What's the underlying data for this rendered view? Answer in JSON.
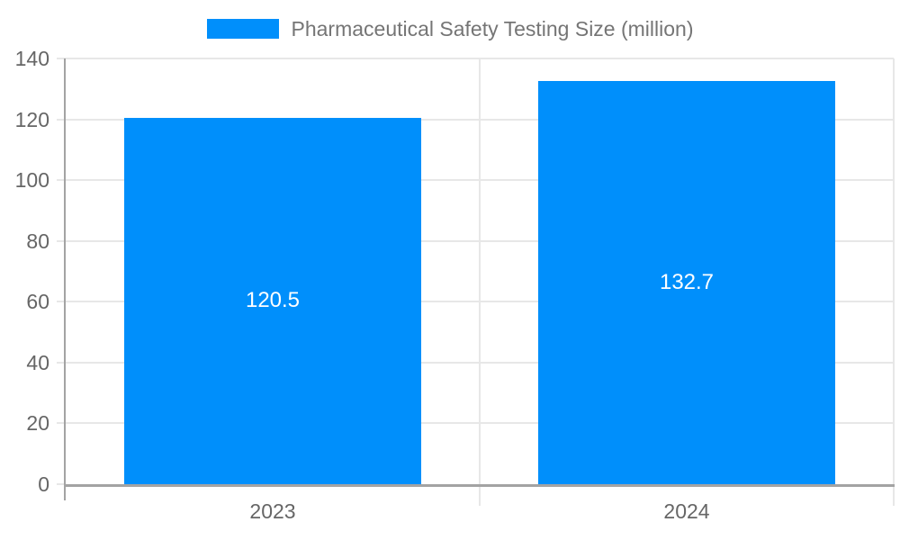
{
  "chart_data": {
    "type": "bar",
    "title": "",
    "legend": {
      "label": "Pharmaceutical Safety Testing Size (million)",
      "position": "top-center",
      "marker_color": "#008FFB"
    },
    "categories": [
      "2023",
      "2024"
    ],
    "series": [
      {
        "name": "Pharmaceutical Safety Testing Size (million)",
        "values": [
          120.5,
          132.7
        ],
        "color": "#008FFB"
      }
    ],
    "value_labels": [
      "120.5",
      "132.7"
    ],
    "value_label_color": "#ffffff",
    "xlabel": "",
    "ylabel": "",
    "ylim": [
      0,
      140
    ],
    "yticks": [
      0,
      20,
      40,
      60,
      80,
      100,
      120,
      140
    ],
    "grid": true,
    "colors": {
      "bar": "#008FFB",
      "grid_line": "#e7e7e7",
      "axis_line": "#a3a3a3",
      "axis_text": "#666666",
      "legend_text": "#757575",
      "background": "#ffffff"
    }
  }
}
